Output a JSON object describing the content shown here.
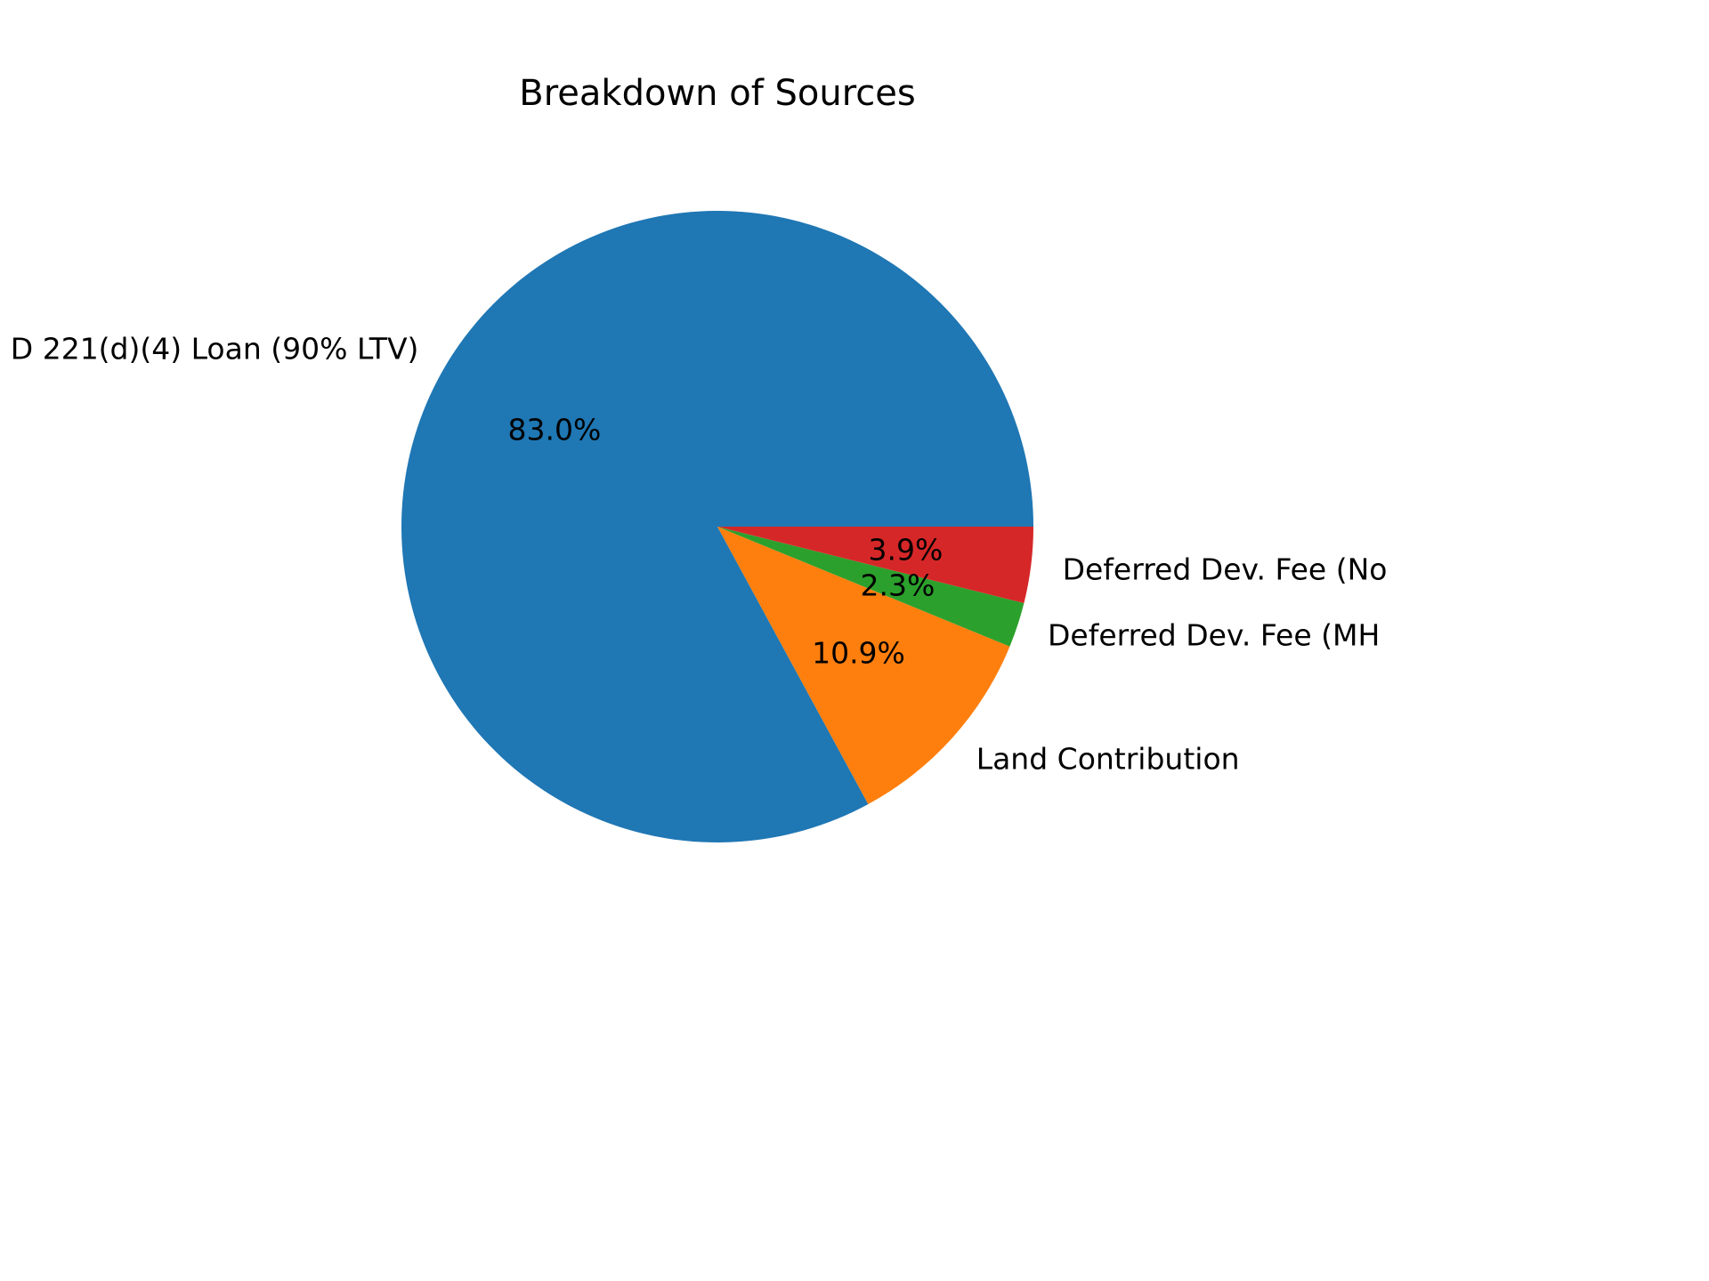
{
  "chart_data": {
    "type": "pie",
    "title": "Breakdown of Sources",
    "start_angle_deg": 0,
    "direction": "counterclockwise",
    "legend": "none",
    "slices": [
      {
        "label": "D 221(d)(4) Loan (90% LTV)",
        "value": 83.0,
        "pct": "83.0%",
        "color": "#1f77b4"
      },
      {
        "label": "Land Contribution",
        "value": 10.9,
        "pct": "10.9%",
        "color": "#ff7f0e"
      },
      {
        "label": "Deferred Dev. Fee (MH",
        "value": 2.3,
        "pct": "2.3%",
        "color": "#2ca02c"
      },
      {
        "label": "Deferred Dev. Fee (No",
        "value": 3.9,
        "pct": "3.9%",
        "color": "#d62728"
      }
    ]
  },
  "layout_colors": {
    "background": "#ffffff",
    "text": "#000000"
  }
}
